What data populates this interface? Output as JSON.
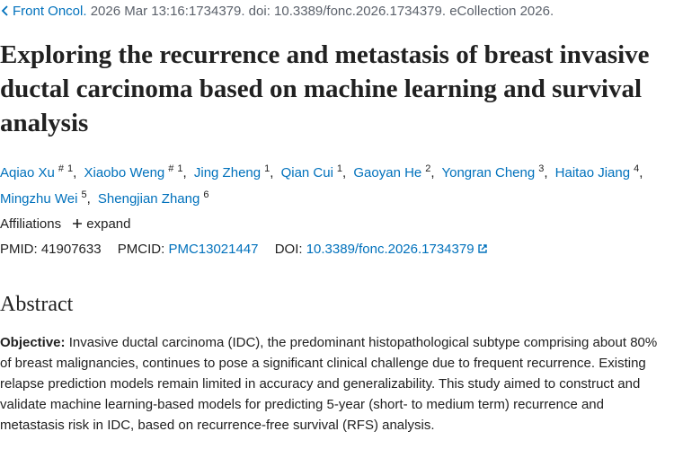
{
  "citation": {
    "journal": "Front Oncol.",
    "details": "2026 Mar 13:16:1734379. doi: 10.3389/fonc.2026.1734379. eCollection 2026."
  },
  "title": "Exploring the recurrence and metastasis of breast invasive ductal carcinoma based on machine learning and survival analysis",
  "authors": [
    {
      "name": "Aqiao Xu",
      "equal": "#",
      "affiliation": "1"
    },
    {
      "name": "Xiaobo Weng",
      "equal": "#",
      "affiliation": "1"
    },
    {
      "name": "Jing Zheng",
      "affiliation": "1"
    },
    {
      "name": "Qian Cui",
      "affiliation": "1"
    },
    {
      "name": "Gaoyan He",
      "affiliation": "2"
    },
    {
      "name": "Yongran Cheng",
      "affiliation": "3"
    },
    {
      "name": "Haitao Jiang",
      "affiliation": "4"
    },
    {
      "name": "Mingzhu Wei",
      "affiliation": "5"
    },
    {
      "name": "Shengjian Zhang",
      "affiliation": "6"
    }
  ],
  "affiliations": {
    "label": "Affiliations",
    "toggle": "expand"
  },
  "identifiers": {
    "pmid_label": "PMID:",
    "pmid": "41907633",
    "pmcid_label": "PMCID:",
    "pmcid": "PMC13021447",
    "doi_label": "DOI:",
    "doi": "10.3389/fonc.2026.1734379"
  },
  "abstract": {
    "heading": "Abstract",
    "section_label": "Objective:",
    "text": "Invasive ductal carcinoma (IDC), the predominant histopathological subtype comprising about 80% of breast malignancies, continues to pose a significant clinical challenge due to frequent recurrence. Existing relapse prediction models remain limited in accuracy and generalizability. This study aimed to construct and validate machine learning-based models for predicting 5-year (short- to medium term) recurrence and metastasis risk in IDC, based on recurrence-free survival (RFS) analysis."
  }
}
